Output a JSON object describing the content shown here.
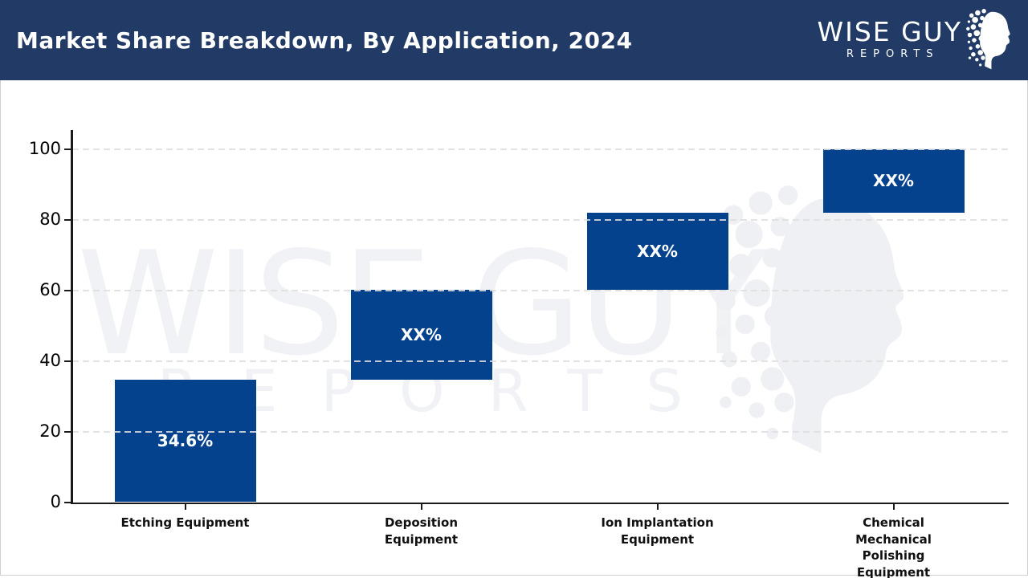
{
  "header": {
    "title": "Market Share Breakdown, By Application, 2024",
    "logo": {
      "line1": "WISE GUY",
      "line2": "REPORTS"
    }
  },
  "watermark": {
    "line1": "WISE GUY",
    "line2": "REPORTS"
  },
  "colors": {
    "header_bg": "#213a66",
    "bar_blue": "#05428e",
    "grid_gray": "#e2e2e2",
    "watermark_gray": "#f1f2f5",
    "bar_label_white": "#ffffff"
  },
  "chart_data": {
    "type": "bar",
    "subtype": "waterfall",
    "title": "Market Share Breakdown, By Application, 2024",
    "categories": [
      "Etching Equipment",
      "Deposition\nEquipment",
      "Ion Implantation\nEquipment",
      "Chemical\nMechanical\nPolishing\nEquipment"
    ],
    "series": [
      {
        "name": "Market Share",
        "segments": [
          {
            "category": "Etching Equipment",
            "start": 0,
            "end": 34.6,
            "label": "34.6%"
          },
          {
            "category": "Deposition Equipment",
            "start": 34.6,
            "end": 60.1,
            "label": "XX%"
          },
          {
            "category": "Ion Implantation Equipment",
            "start": 60.1,
            "end": 82.0,
            "label": "XX%"
          },
          {
            "category": "Chemical Mechanical Polishing Equipment",
            "start": 82.0,
            "end": 100.0,
            "label": "XX%"
          }
        ]
      }
    ],
    "xlabel": "",
    "ylabel": "",
    "ylim": [
      0,
      100
    ],
    "yticks": [
      0,
      20,
      40,
      60,
      80,
      100
    ],
    "grid": "horizontal-dashed",
    "legend": "none",
    "bar_color": "#05428e",
    "value_label_color": "#ffffff"
  }
}
